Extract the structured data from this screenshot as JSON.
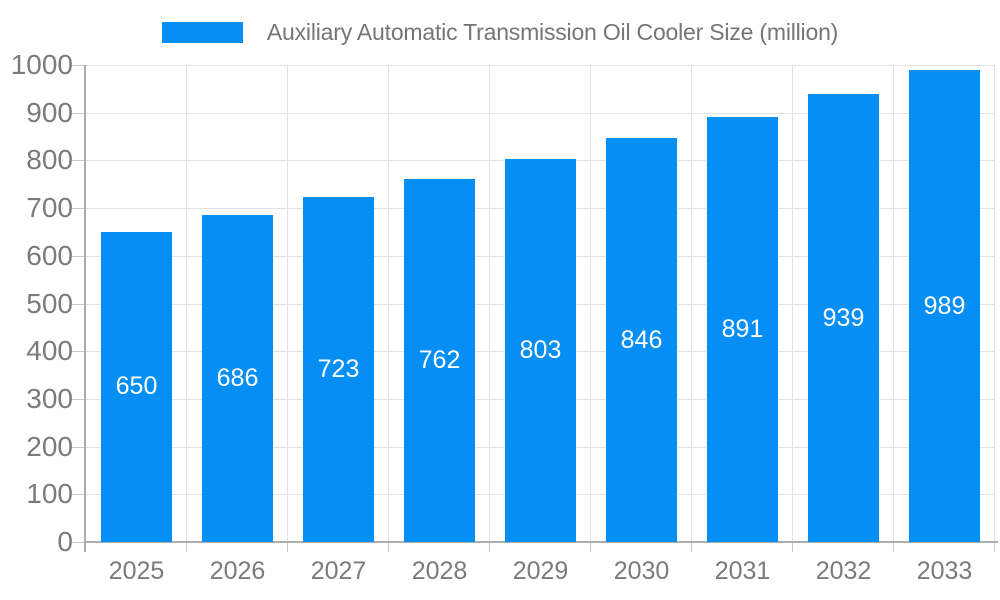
{
  "chart_data": {
    "type": "bar",
    "title": "Auxiliary Automatic Transmission Oil Cooler Size (million)",
    "legend_position": "top",
    "categories": [
      "2025",
      "2026",
      "2027",
      "2028",
      "2029",
      "2030",
      "2031",
      "2032",
      "2033"
    ],
    "series": [
      {
        "name": "Auxiliary Automatic Transmission Oil Cooler Size (million)",
        "values": [
          650,
          686,
          723,
          762,
          803,
          846,
          891,
          939,
          989
        ]
      }
    ],
    "xlabel": "",
    "ylabel": "",
    "ylim": [
      0,
      1000
    ],
    "yticks": [
      0,
      100,
      200,
      300,
      400,
      500,
      600,
      700,
      800,
      900,
      1000
    ],
    "grid": true,
    "value_labels": "inside-center",
    "colors": {
      "bar": "#058ff5",
      "value_label": "#ffffff",
      "axis_text": "#7b7b7b",
      "legend_text": "#757575",
      "gridline": "#e2e2e2",
      "axis_line": "#aeaeae",
      "tick": "#c8c8c8",
      "background": "#ffffff"
    }
  }
}
